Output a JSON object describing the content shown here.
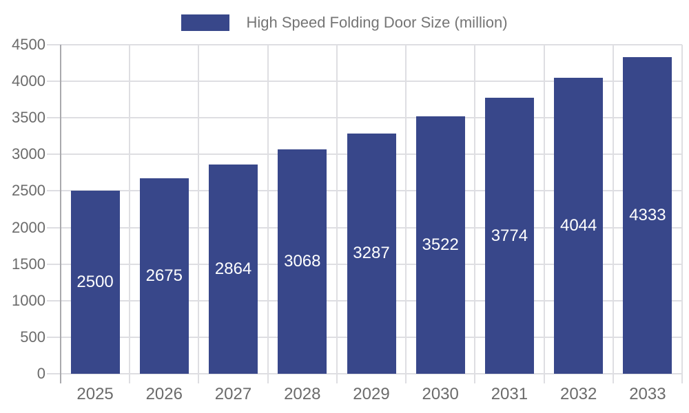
{
  "legend": {
    "label": "High Speed Folding Door Size (million)"
  },
  "chart_data": {
    "type": "bar",
    "title": "High Speed Folding Door Size (million)",
    "categories": [
      "2025",
      "2026",
      "2027",
      "2028",
      "2029",
      "2030",
      "2031",
      "2032",
      "2033"
    ],
    "values": [
      2500,
      2675,
      2864,
      3068,
      3287,
      3522,
      3774,
      4044,
      4333
    ],
    "xlabel": "",
    "ylabel": "",
    "ylim": [
      0,
      4500
    ],
    "yticks": [
      0,
      500,
      1000,
      1500,
      2000,
      2500,
      3000,
      3500,
      4000,
      4500
    ],
    "grid": true,
    "legend_position": "top-center",
    "bar_value_labels": "white, centered inside bars",
    "colors": {
      "bar": "#38478A",
      "bar_label": "#FFFFFF",
      "grid": "#DEDEE2",
      "axis_line": "#A9A9AD",
      "axis_text": "#6B6B6B",
      "legend_text": "#757575",
      "background": "#FFFFFF"
    }
  }
}
